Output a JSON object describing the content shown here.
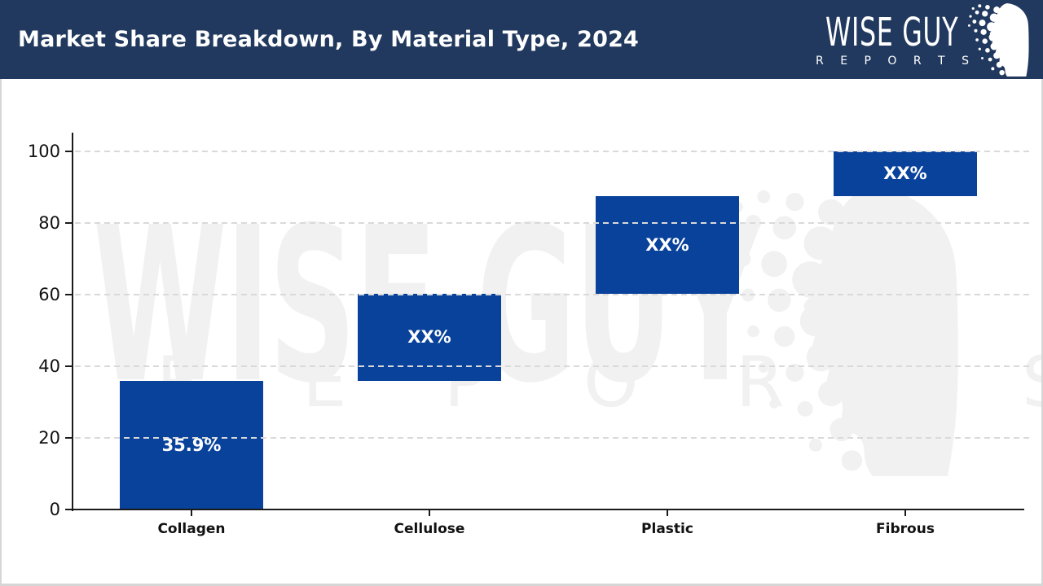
{
  "header": {
    "title": "Market Share Breakdown, By Material Type, 2024",
    "logo": {
      "line1": "WISE GUY",
      "line2": "R E P O R T S"
    }
  },
  "watermark": {
    "line1": "WISE GUY",
    "line2": "R E P O R T S"
  },
  "chart_data": {
    "type": "bar",
    "variant": "waterfall",
    "title": "Market Share Breakdown, By Material Type, 2024",
    "categories": [
      "Collagen",
      "Cellulose",
      "Plastic",
      "Fibrous"
    ],
    "segments": [
      {
        "category": "Collagen",
        "start": 0,
        "end": 35.9,
        "label": "35.9%"
      },
      {
        "category": "Cellulose",
        "start": 35.9,
        "end": 60.3,
        "label": "XX%"
      },
      {
        "category": "Plastic",
        "start": 60.3,
        "end": 87.6,
        "label": "XX%"
      },
      {
        "category": "Fibrous",
        "start": 87.6,
        "end": 100,
        "label": "XX%"
      }
    ],
    "ylabel": "",
    "xlabel": "",
    "yticks": [
      0,
      20,
      40,
      60,
      80,
      100
    ],
    "ylim": [
      0,
      104
    ],
    "grid": "horizontal-dashed",
    "legend": "none",
    "bar_color": "#09429b",
    "bar_label_color": "#ffffff"
  },
  "colors": {
    "header_bg": "#21395e",
    "bar": "#09429b",
    "grid": "#d9d9d9",
    "axis": "#1a1a1a",
    "watermark": "#f1f1f1",
    "border": "#d6d6d6",
    "title_text": "#ffffff"
  }
}
